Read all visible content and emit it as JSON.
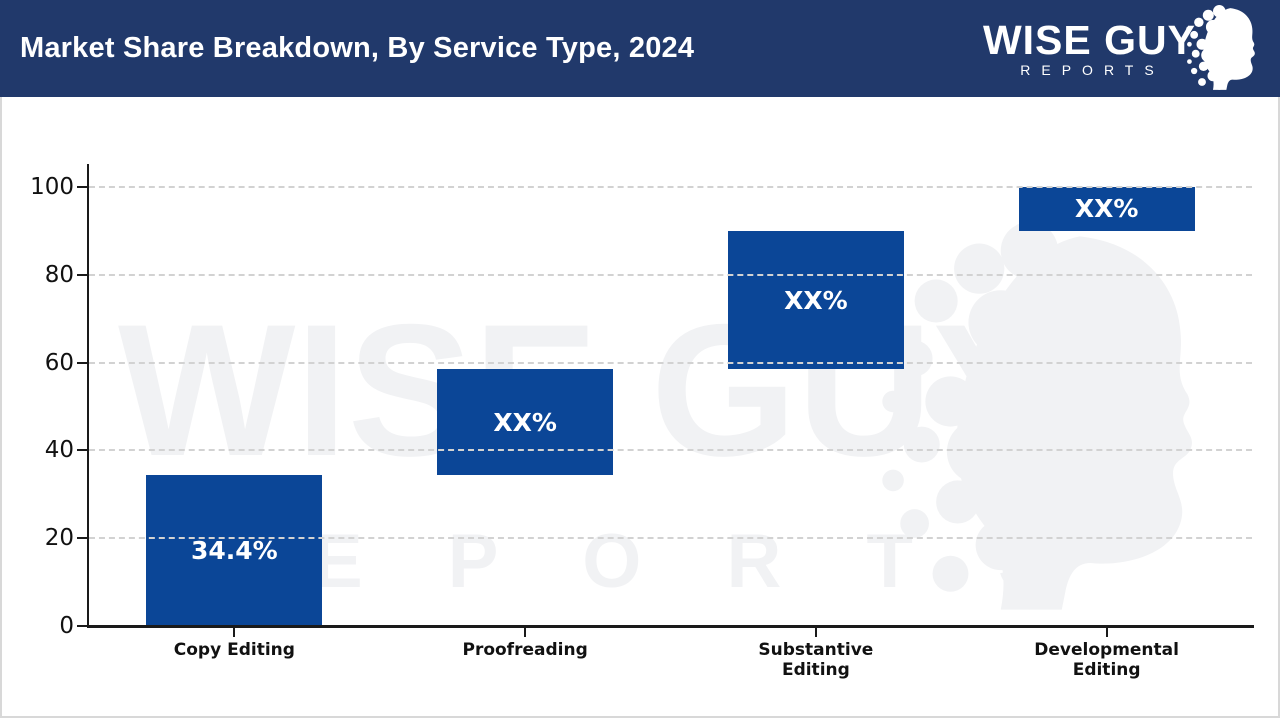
{
  "header": {
    "title": "Market Share Breakdown, By Service Type, 2024",
    "bg_color": "#21396b",
    "logo": {
      "line1": "WISE GUY",
      "line2": "REPORTS"
    }
  },
  "watermark": {
    "line1": "WISE GUY",
    "line2": "R E P O R T S"
  },
  "chart_data": {
    "type": "bar",
    "subtype": "waterfall",
    "title": "Market Share Breakdown, By Service Type, 2024",
    "categories": [
      "Copy Editing",
      "Proofreading",
      "Substantive Editing",
      "Developmental Editing"
    ],
    "category_lines": [
      [
        "Copy Editing"
      ],
      [
        "Proofreading"
      ],
      [
        "Substantive",
        "Editing"
      ],
      [
        "Developmental",
        "Editing"
      ]
    ],
    "segments": [
      {
        "category": "Copy Editing",
        "start": 0,
        "end": 34.4,
        "label": "34.4%"
      },
      {
        "category": "Proofreading",
        "start": 34.4,
        "end": 58.5,
        "label": "XX%"
      },
      {
        "category": "Substantive Editing",
        "start": 58.5,
        "end": 90,
        "label": "XX%"
      },
      {
        "category": "Developmental Editing",
        "start": 90,
        "end": 100,
        "label": "XX%"
      }
    ],
    "y_ticks": [
      0,
      20,
      40,
      60,
      80,
      100
    ],
    "ylim": [
      0,
      100
    ],
    "grid": "horizontal-dashed",
    "legend": "none",
    "bar_color": "#0b4697",
    "bar_label_color": "#ffffff"
  }
}
